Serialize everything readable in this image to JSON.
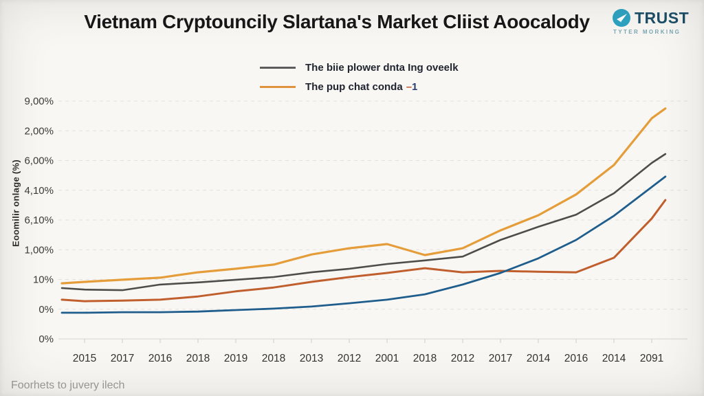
{
  "title": "Vietnam Cryptouncily Slartana's Market Cliist Aoocalody",
  "logo": {
    "name": "TRUST",
    "tagline": "TYTER MORKING",
    "icon": "paper-plane-circle-icon",
    "accent_color": "#2da3c2",
    "name_color": "#1b4d68",
    "tagline_color": "#7aa7b5"
  },
  "legend": {
    "entries": [
      {
        "label": "The biie plower dnta Ing oveelk",
        "color": "#5c5c5c"
      },
      {
        "label": "The pup chat conda",
        "suffix_dash": "–",
        "suffix_value": "1",
        "color": "#e0923f",
        "dash_color": "#c0552e",
        "value_color": "#2c3e70"
      }
    ]
  },
  "footer": "Foorhets to juvery ilech",
  "chart_data": {
    "type": "line",
    "title": "Vietnam Cryptouncily Slartana's Market Cliist Aoocalody",
    "ylabel": "Eoomilir onlage (%)",
    "xlabel": "",
    "grid": "horizontal-dashed",
    "legend_position": "top-center",
    "y_tick_labels": [
      "9,00%",
      "2,00%",
      "6,00%",
      "4,10%",
      "6,10%",
      "1,00%",
      "10%",
      "0%",
      "0%"
    ],
    "categories": [
      "2015",
      "2017",
      "2016",
      "2018",
      "2019",
      "2018",
      "2013",
      "2012",
      "2001",
      "2018",
      "2012",
      "2017",
      "2014",
      "2016",
      "2014",
      "2091"
    ],
    "value_unit": "gridline-units (bottom gridline = 0, one unit per horizontal gridline)",
    "x_index": [
      -0.6,
      0,
      1,
      2,
      3,
      4,
      5,
      6,
      7,
      8,
      9,
      10,
      11,
      12,
      13,
      14,
      15,
      15.36
    ],
    "series": [
      {
        "name": "The biie plower dnta Ing oveelk",
        "color": "#4e4d4c",
        "width": 2.6,
        "values": [
          1.71,
          1.66,
          1.64,
          1.83,
          1.9,
          1.99,
          2.08,
          2.24,
          2.36,
          2.52,
          2.64,
          2.77,
          3.33,
          3.77,
          4.18,
          4.9,
          5.92,
          6.22
        ]
      },
      {
        "name": "",
        "color": "#c05f2d",
        "width": 3.0,
        "values": [
          1.32,
          1.27,
          1.29,
          1.32,
          1.43,
          1.6,
          1.73,
          1.92,
          2.08,
          2.22,
          2.38,
          2.24,
          2.29,
          2.26,
          2.24,
          2.73,
          4.05,
          4.67
        ]
      },
      {
        "name": "The pup chat conda –1",
        "color": "#e59d3a",
        "width": 3.2,
        "values": [
          1.87,
          1.92,
          1.99,
          2.06,
          2.24,
          2.36,
          2.5,
          2.84,
          3.05,
          3.19,
          2.82,
          3.05,
          3.65,
          4.16,
          4.86,
          5.85,
          7.42,
          7.75
        ]
      },
      {
        "name": "",
        "color": "#1e5d8c",
        "width": 2.8,
        "values": [
          0.88,
          0.88,
          0.9,
          0.9,
          0.92,
          0.97,
          1.02,
          1.09,
          1.2,
          1.32,
          1.5,
          1.83,
          2.22,
          2.71,
          3.33,
          4.14,
          5.11,
          5.46
        ]
      }
    ]
  }
}
